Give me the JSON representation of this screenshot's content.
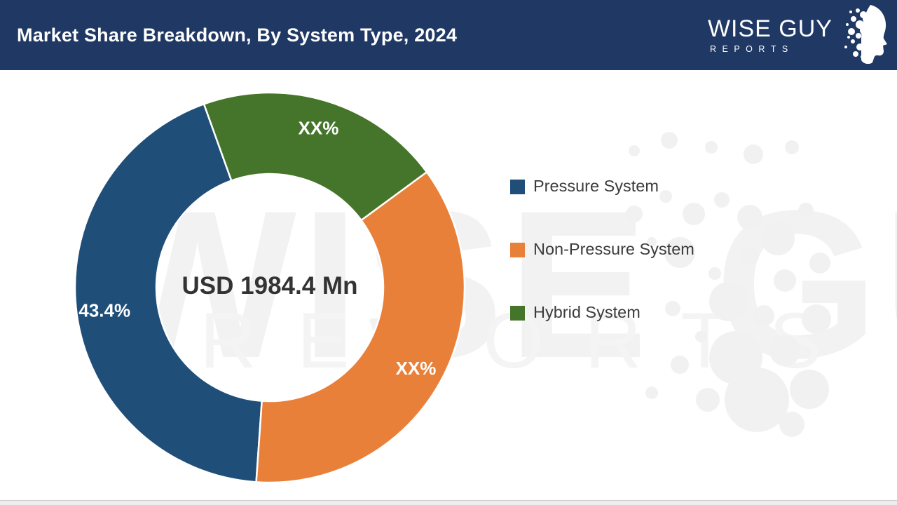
{
  "header": {
    "title": "Market Share Breakdown, By System Type, 2024",
    "logo": {
      "line1": "WISE GUY",
      "line2": "REPORTS"
    }
  },
  "watermark": {
    "line1": "WISE GUY",
    "line2": "REPORTS"
  },
  "chart_data": {
    "type": "donut",
    "title": "Market Share Breakdown, By System Type, 2024",
    "center_label": "USD 1984.4 Mn",
    "start_angle_deg": 184,
    "clockwise": true,
    "outer_radius_px": 278,
    "inner_radius_px": 162,
    "label_radius_px": 238,
    "slices": [
      {
        "name": "Pressure System",
        "pct": 43.4,
        "label": "43.4%",
        "color": "#1f4e79",
        "label_color": "#ffffff"
      },
      {
        "name": "Hybrid System",
        "pct": 20.4,
        "label": "XX%",
        "color": "#45752a",
        "label_color": "#ffffff"
      },
      {
        "name": "Non-Pressure System",
        "pct": 36.2,
        "label": "XX%",
        "color": "#e8803a",
        "label_color": "#ffffff"
      }
    ],
    "legend": [
      "Pressure System",
      "Non-Pressure System",
      "Hybrid System"
    ],
    "legend_position": "right",
    "slice_border_color": "#ffffff"
  },
  "colors": {
    "header_bg": "#1f3864",
    "page_bg": "#ffffff",
    "center_text": "#333333",
    "legend_text": "#3b3b3b",
    "watermark": "#f2f2f2"
  }
}
